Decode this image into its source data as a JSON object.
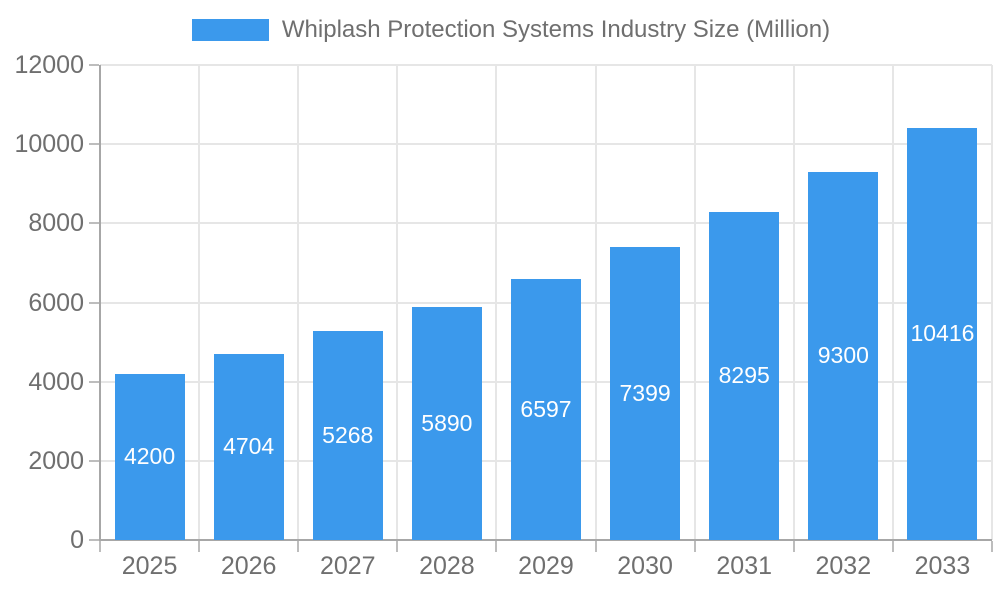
{
  "chart_data": {
    "type": "bar",
    "title": "Whiplash Protection Systems Industry Size (Million)",
    "series_name": "Whiplash Protection Systems Industry Size (Million)",
    "categories": [
      "2025",
      "2026",
      "2027",
      "2028",
      "2029",
      "2030",
      "2031",
      "2032",
      "2033"
    ],
    "values": [
      4200,
      4704,
      5268,
      5890,
      6597,
      7399,
      8295,
      9300,
      10416
    ],
    "xlabel": "",
    "ylabel": "",
    "ylim": [
      0,
      12000
    ],
    "yticks": [
      0,
      2000,
      4000,
      6000,
      8000,
      10000,
      12000
    ],
    "grid": true,
    "legend_position": "top",
    "bar_labels_visible": true,
    "bar_label_position": "center-inside"
  },
  "colors": {
    "bar": "#3B99EC",
    "bar_label": "#FFFFFF",
    "axis_text": "#6F6F6F",
    "grid_line": "#E6E6E6",
    "axis_line": "#A7A7A7",
    "tick_mark": "#BDBDBD",
    "background": "#FFFFFF"
  }
}
